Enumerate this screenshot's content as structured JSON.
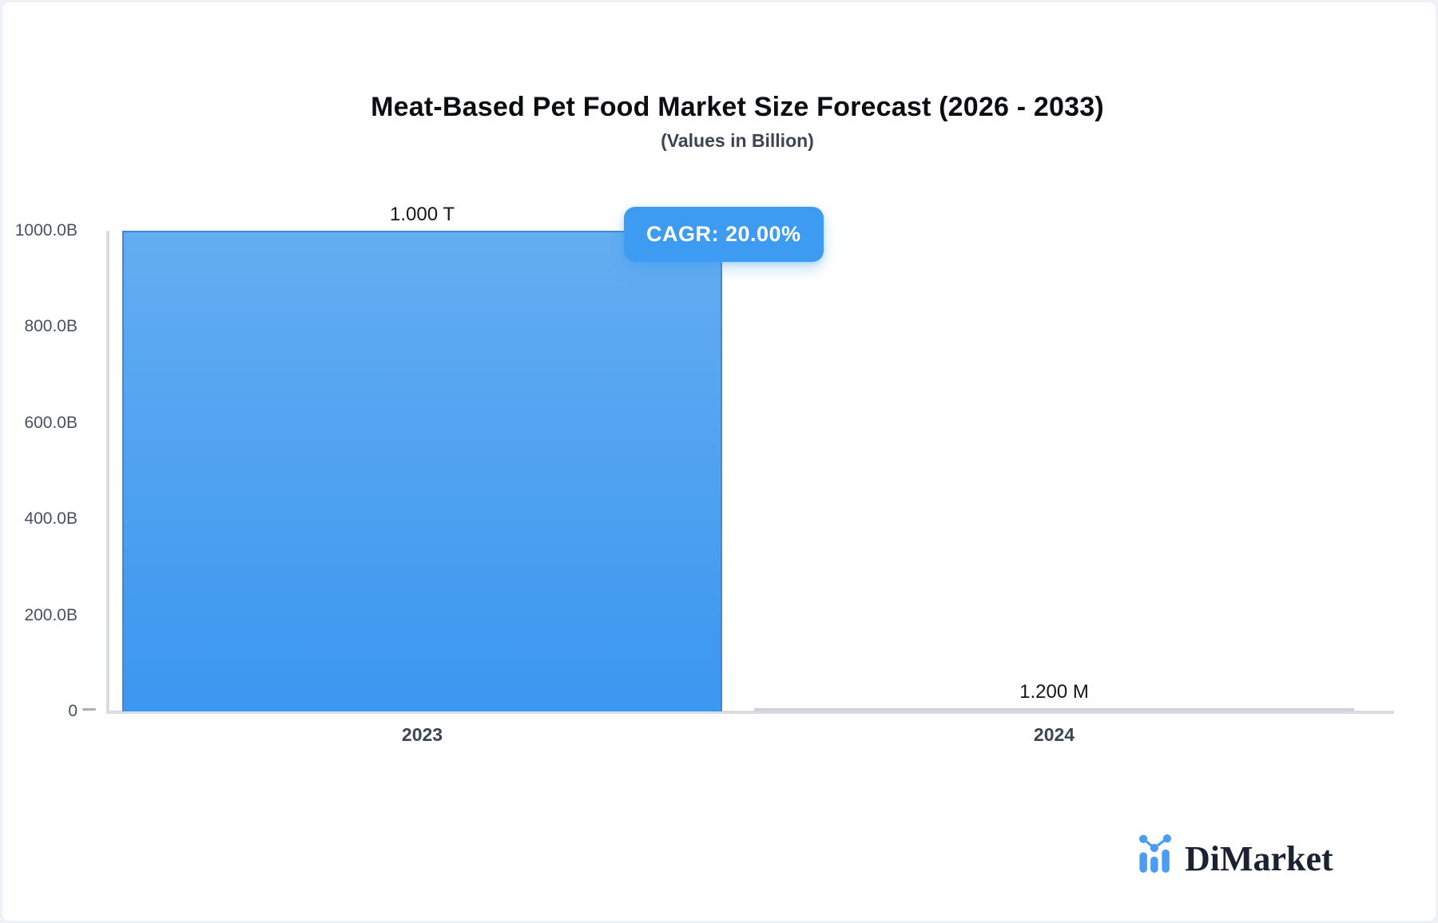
{
  "header": {
    "title": "Meat-Based Pet Food Market Size Forecast (2026 - 2033)",
    "subtitle": "(Values in Billion)"
  },
  "annotation": {
    "cagr_label": "CAGR: 20.00%"
  },
  "footer": {
    "brand_name": "DiMarket",
    "brand_icon": "bar-chart-icon"
  },
  "colors": {
    "accent": "#3d9bf1",
    "bar_gradient_top": "#63adf1",
    "bar_gradient_bottom": "#3b97f0",
    "bar_border": "#3e87d8",
    "flat_bar": "#cfd4db",
    "axis_line": "#d9dce1"
  },
  "chart_data": {
    "type": "bar",
    "title": "Meat-Based Pet Food Market Size Forecast (2026 - 2033)",
    "subtitle": "(Values in Billion)",
    "categories": [
      "2023",
      "2024"
    ],
    "values_billion": [
      1000,
      0.0012
    ],
    "value_labels": [
      "1.000 T",
      "1.200 M"
    ],
    "ytick_labels": [
      "1000.0B",
      "800.0B",
      "600.0B",
      "400.0B",
      "200.0B",
      "0"
    ],
    "ytick_values": [
      1000,
      800,
      600,
      400,
      200,
      0
    ],
    "ylim": [
      0,
      1000
    ],
    "grid": "off",
    "legend": "none",
    "annotation": "CAGR: 20.00%",
    "bar_style": [
      "primary",
      "flat"
    ]
  }
}
